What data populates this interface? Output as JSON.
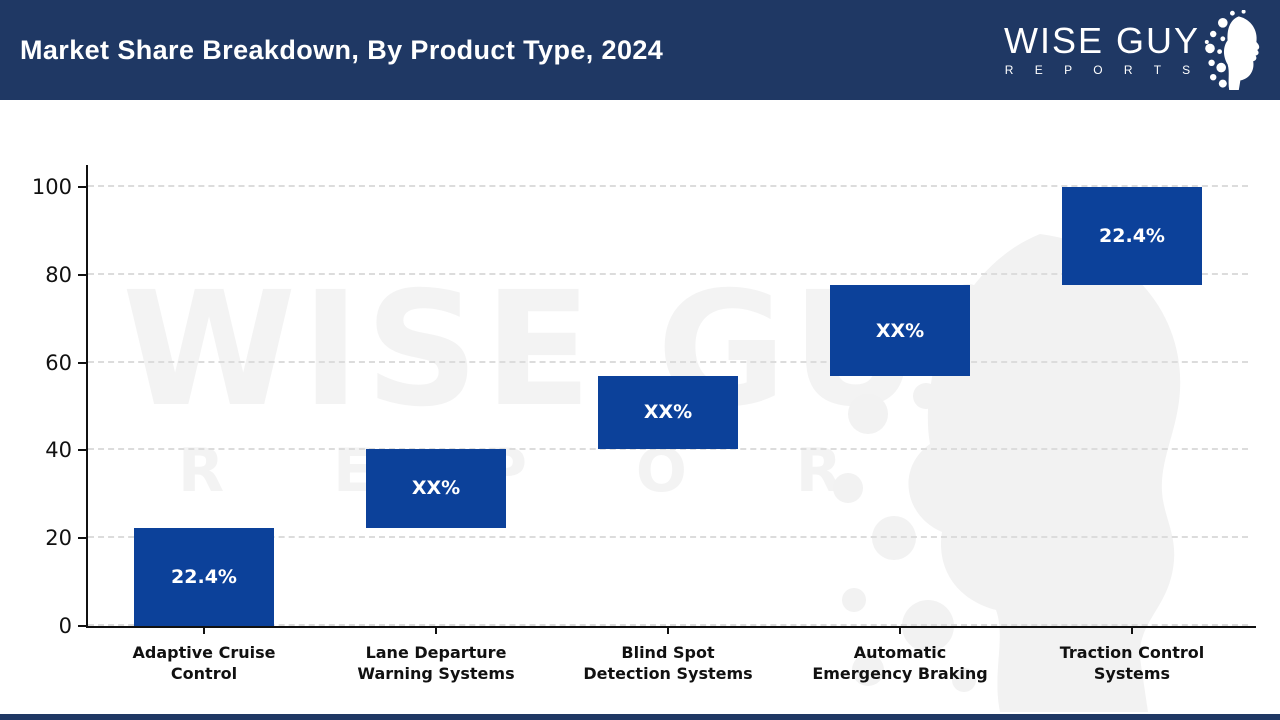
{
  "header": {
    "title": "Market Share Breakdown, By Product Type, 2024",
    "background": "#1f3864",
    "logo": {
      "wordmark": "WISE GUY",
      "subtitle": "R E P O R T S"
    }
  },
  "watermark": {
    "wordmark": "WISE GUY",
    "subtitle": "R E P O R T S"
  },
  "chart_data": {
    "type": "bar",
    "subtype": "waterfall",
    "title": "Market Share Breakdown, By Product Type, 2024",
    "categories": [
      "Adaptive Cruise Control",
      "Lane Departure Warning Systems",
      "Blind Spot Detection Systems",
      "Automatic Emergency Braking",
      "Traction Control Systems"
    ],
    "category_label_lines": [
      [
        "Adaptive Cruise",
        "Control"
      ],
      [
        "Lane Departure",
        "Warning Systems"
      ],
      [
        "Blind Spot",
        "Detection Systems"
      ],
      [
        "Automatic",
        "Emergency Braking"
      ],
      [
        "Traction Control",
        "Systems"
      ]
    ],
    "segments": [
      {
        "category": "Adaptive Cruise Control",
        "start": 0,
        "end": 22.4,
        "label": "22.4%"
      },
      {
        "category": "Lane Departure Warning Systems",
        "start": 22.4,
        "end": 40.4,
        "label": "XX%"
      },
      {
        "category": "Blind Spot Detection Systems",
        "start": 40.4,
        "end": 57.0,
        "label": "XX%"
      },
      {
        "category": "Automatic Emergency Braking",
        "start": 57.0,
        "end": 77.6,
        "label": "XX%"
      },
      {
        "category": "Traction Control Systems",
        "start": 77.6,
        "end": 100.0,
        "label": "22.4%"
      }
    ],
    "xlabel": "",
    "ylabel": "",
    "ylim": [
      0,
      105
    ],
    "yticks": [
      0,
      20,
      40,
      60,
      80,
      100
    ],
    "grid": "horizontal-dashed",
    "legend": "none",
    "bar_color": "#0c419a",
    "bar_label_color": "#ffffff",
    "axis_color": "#111111",
    "gridline_color": "#dcdcdc"
  }
}
